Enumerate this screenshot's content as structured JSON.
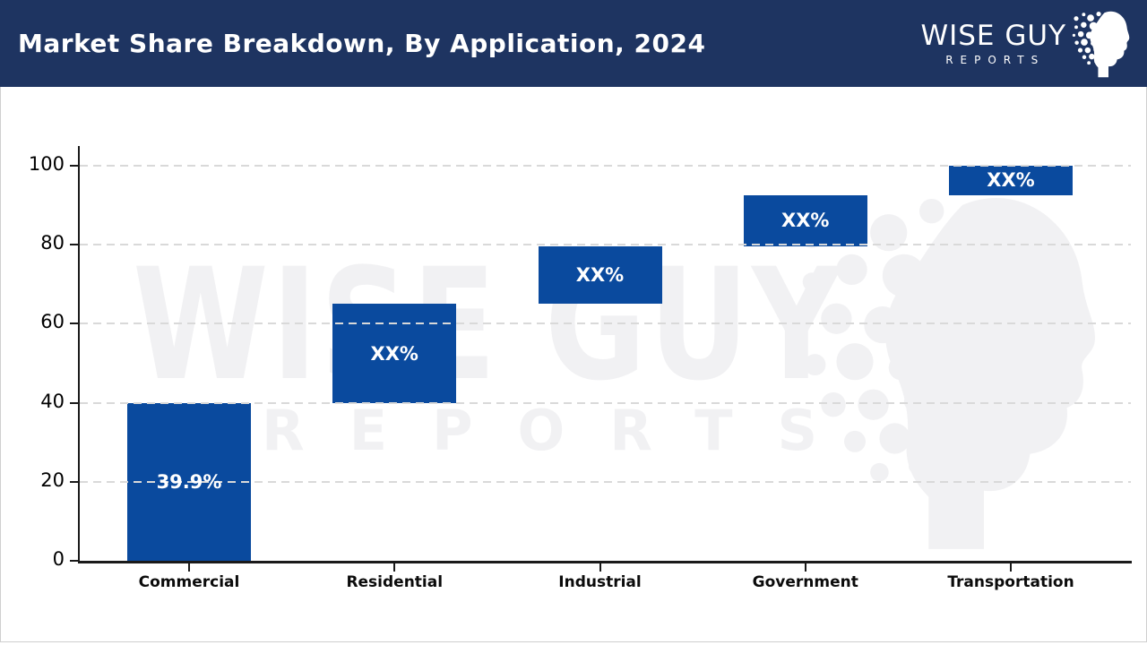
{
  "header": {
    "title": "Market Share Breakdown, By Application, 2024",
    "logo": {
      "line1": "WISE GUY",
      "line2": "REPORTS"
    }
  },
  "watermark": {
    "line1": "WISE GUY",
    "line2": "REPORTS"
  },
  "colors": {
    "header_bg": "#1E3461",
    "bar": "#0A4A9E",
    "grid": "#D9D9D9",
    "axis": "#1A1A1A",
    "watermark": "#F1F1F3"
  },
  "chart_data": {
    "type": "bar",
    "subtype": "waterfall",
    "title": "Market Share Breakdown, By Application, 2024",
    "xlabel": "",
    "ylabel": "",
    "categories": [
      "Commercial",
      "Residential",
      "Industrial",
      "Government",
      "Transportation"
    ],
    "bars": [
      {
        "category": "Commercial",
        "start": 0,
        "end": 39.9,
        "label": "39.9%"
      },
      {
        "category": "Residential",
        "start": 39.9,
        "end": 65.0,
        "label": "XX%"
      },
      {
        "category": "Industrial",
        "start": 65.0,
        "end": 79.6,
        "label": "XX%"
      },
      {
        "category": "Government",
        "start": 79.6,
        "end": 92.6,
        "label": "XX%"
      },
      {
        "category": "Transportation",
        "start": 92.6,
        "end": 100,
        "label": "XX%"
      }
    ],
    "yticks": [
      0,
      20,
      40,
      60,
      80,
      100
    ],
    "ylim": [
      0,
      105
    ],
    "grid": "dashed-horizontal, drawn above bars",
    "legend_position": "none",
    "bar_color": "#0A4A9E"
  }
}
